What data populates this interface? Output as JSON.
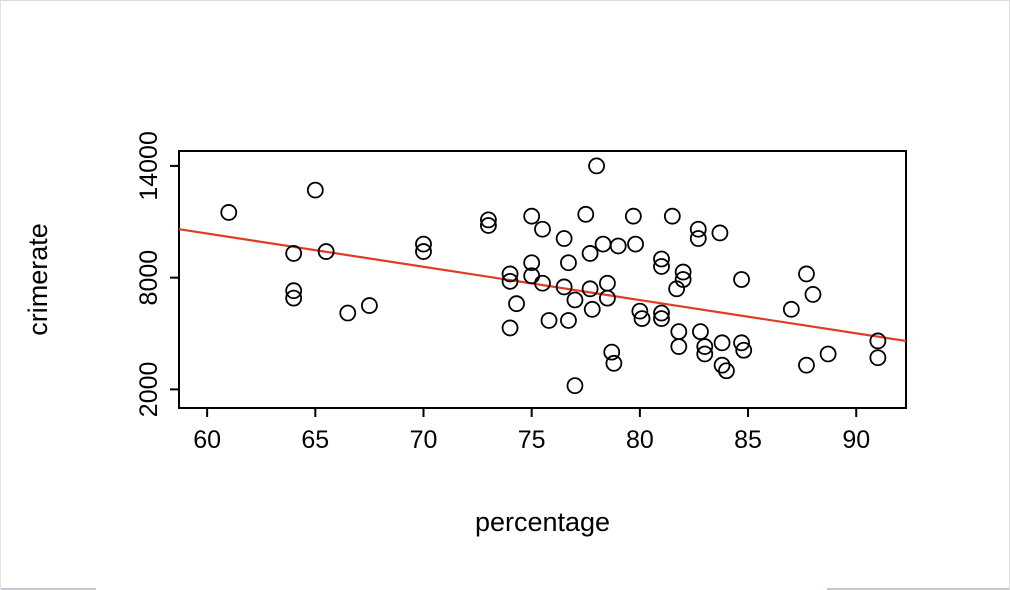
{
  "chart_data": {
    "type": "scatter",
    "title": "",
    "xlabel": "percentage",
    "ylabel": "crimerate",
    "xlim": [
      58.7,
      92.3
    ],
    "ylim": [
      1000,
      14800
    ],
    "x_ticks": [
      60,
      65,
      70,
      75,
      80,
      85,
      90
    ],
    "y_ticks": [
      2000,
      8000,
      14000
    ],
    "grid": false,
    "legend": null,
    "point_style": {
      "shape": "open-circle",
      "color": "#000000"
    },
    "trend_line": {
      "x1": 58.7,
      "y1": 10600,
      "x2": 92.3,
      "y2": 4600,
      "color": "#e23b22"
    },
    "points": [
      [
        61,
        11500
      ],
      [
        65,
        12700
      ],
      [
        64,
        9300
      ],
      [
        64,
        7300
      ],
      [
        64,
        6900
      ],
      [
        65.5,
        9400
      ],
      [
        66.5,
        6100
      ],
      [
        67.5,
        6500
      ],
      [
        70,
        9800
      ],
      [
        70,
        9400
      ],
      [
        73,
        11100
      ],
      [
        73,
        10800
      ],
      [
        74,
        8200
      ],
      [
        74,
        7800
      ],
      [
        74,
        5300
      ],
      [
        74.3,
        6600
      ],
      [
        75,
        8800
      ],
      [
        75,
        8100
      ],
      [
        75,
        11300
      ],
      [
        75.5,
        10600
      ],
      [
        75.5,
        7700
      ],
      [
        75.8,
        5700
      ],
      [
        76.5,
        10100
      ],
      [
        76.5,
        7500
      ],
      [
        76.7,
        8800
      ],
      [
        76.7,
        5700
      ],
      [
        77,
        6800
      ],
      [
        78,
        14000
      ],
      [
        77.5,
        11400
      ],
      [
        77.7,
        9300
      ],
      [
        77.7,
        7400
      ],
      [
        77.8,
        6300
      ],
      [
        77,
        2200
      ],
      [
        78.3,
        9800
      ],
      [
        78.5,
        7700
      ],
      [
        78.5,
        6900
      ],
      [
        78.7,
        4000
      ],
      [
        78.8,
        3400
      ],
      [
        79,
        9700
      ],
      [
        79.7,
        11300
      ],
      [
        79.8,
        9800
      ],
      [
        80,
        6200
      ],
      [
        80.1,
        5800
      ],
      [
        81,
        9000
      ],
      [
        81,
        8600
      ],
      [
        81,
        6100
      ],
      [
        81,
        5800
      ],
      [
        81.5,
        11300
      ],
      [
        81.7,
        7400
      ],
      [
        81.8,
        5100
      ],
      [
        81.8,
        4300
      ],
      [
        82,
        8300
      ],
      [
        82,
        7900
      ],
      [
        82.7,
        10600
      ],
      [
        82.7,
        10100
      ],
      [
        82.8,
        5100
      ],
      [
        83,
        3900
      ],
      [
        83,
        4300
      ],
      [
        83.7,
        10400
      ],
      [
        83.8,
        4500
      ],
      [
        83.8,
        3300
      ],
      [
        84,
        3000
      ],
      [
        84.7,
        7900
      ],
      [
        84.7,
        4500
      ],
      [
        84.8,
        4100
      ],
      [
        87,
        6300
      ],
      [
        87.7,
        8200
      ],
      [
        88,
        7100
      ],
      [
        87.7,
        3300
      ],
      [
        88.7,
        3900
      ],
      [
        91,
        4600
      ],
      [
        91,
        3700
      ]
    ]
  }
}
